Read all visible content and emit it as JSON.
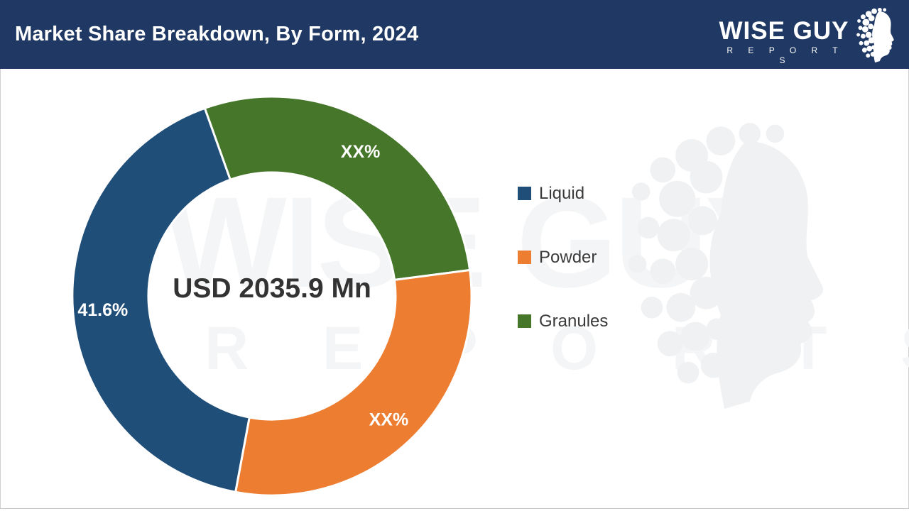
{
  "header": {
    "title": "Market Share Breakdown, By Form, 2024",
    "bg_color": "#1F3864",
    "logo": {
      "line1": "WISE GUY",
      "line2": "R E P O R T S"
    }
  },
  "watermark": {
    "line1": "WISE GUY",
    "line2": "R E P O R T S"
  },
  "chart_data": {
    "type": "pie",
    "subtype": "donut",
    "title": "Market Share Breakdown, By Form, 2024",
    "center_label": "USD 2035.9 Mn",
    "start_angle_deg": -19.7,
    "legend_position": "right",
    "segments": [
      {
        "label": "Granules",
        "value_pct": 28.4,
        "display_label": "XX%",
        "color": "#45762A"
      },
      {
        "label": "Powder",
        "value_pct": 30.0,
        "display_label": "XX%",
        "color": "#ED7D31"
      },
      {
        "label": "Liquid",
        "value_pct": 41.6,
        "display_label": "41.6%",
        "color": "#1F4E79"
      }
    ],
    "legend": [
      {
        "label": "Liquid",
        "color": "#1F4E79"
      },
      {
        "label": "Powder",
        "color": "#ED7D31"
      },
      {
        "label": "Granules",
        "color": "#45762A"
      }
    ]
  }
}
